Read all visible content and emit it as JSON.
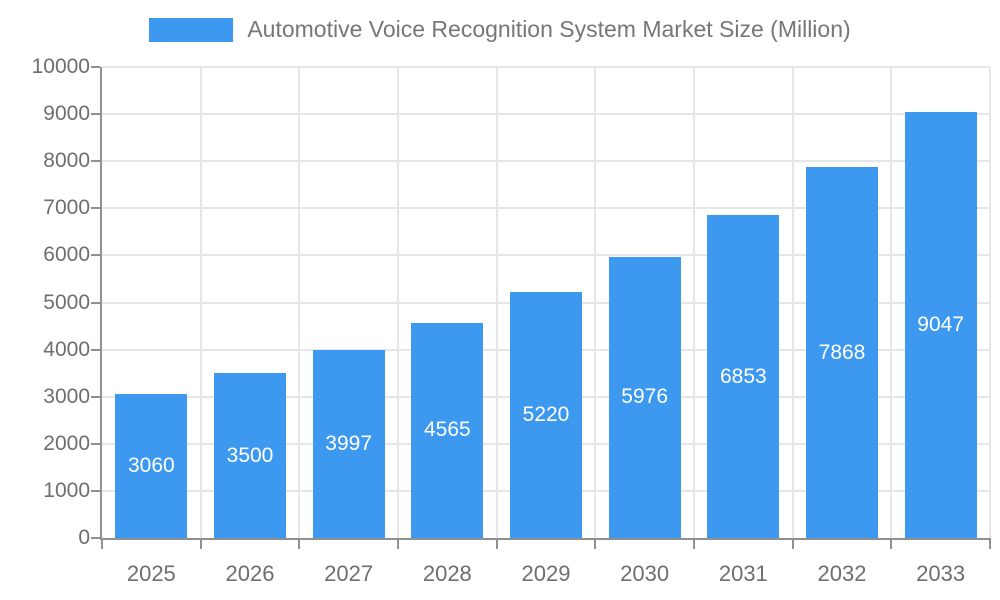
{
  "chart_data": {
    "type": "bar",
    "title": "",
    "legend": [
      {
        "label": "Automotive Voice Recognition System Market Size (Million)",
        "color": "#3d99f0"
      }
    ],
    "legend_position": "top-center",
    "categories": [
      "2025",
      "2026",
      "2027",
      "2028",
      "2029",
      "2030",
      "2031",
      "2032",
      "2033"
    ],
    "series": [
      {
        "name": "Automotive Voice Recognition System Market Size (Million)",
        "values": [
          3060,
          3500,
          3997,
          4565,
          5220,
          5976,
          6853,
          7868,
          9047
        ]
      }
    ],
    "value_labels_shown": true,
    "value_label_position": "inside-center",
    "xlabel": "",
    "ylabel": "",
    "ylim": [
      0,
      10000
    ],
    "ytick_step": 1000,
    "yticks": [
      "0",
      "1000",
      "2000",
      "3000",
      "4000",
      "5000",
      "6000",
      "7000",
      "8000",
      "9000",
      "10000"
    ],
    "grid": true,
    "colors": {
      "bar": "#3d99f0",
      "axis": "#909090",
      "grid": "#e6e6e6",
      "axis_text": "#6e6e6e",
      "legend_text": "#777777",
      "value_text": "#ffffff",
      "background": "#ffffff"
    }
  }
}
